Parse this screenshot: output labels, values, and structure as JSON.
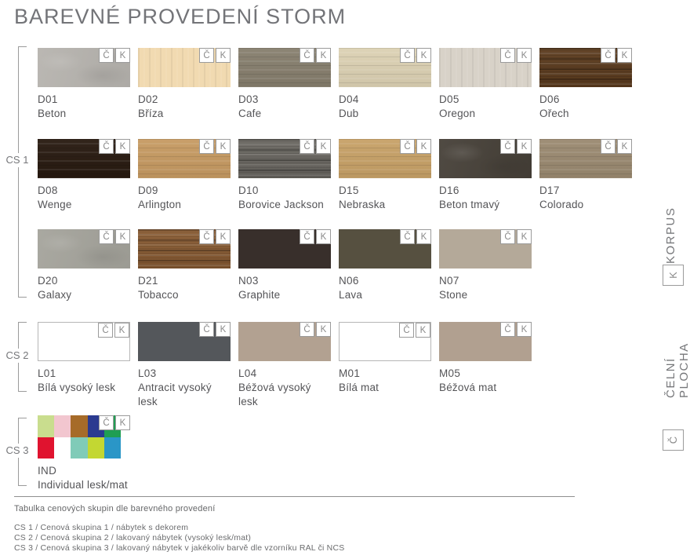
{
  "title": "BAREVNÉ PROVEDENÍ STORM",
  "badges": {
    "front": "Č",
    "korpus": "K"
  },
  "groups": [
    {
      "label": "CS 1"
    },
    {
      "label": "CS 2"
    },
    {
      "label": "CS 3"
    }
  ],
  "rows": [
    {
      "items": [
        {
          "code": "D01",
          "name": "Beton",
          "color": "#b6b3ae",
          "texture": "concrete"
        },
        {
          "code": "D02",
          "name": "Bříza",
          "color": "#f1dab1",
          "texture": "wood-v"
        },
        {
          "code": "D03",
          "name": "Cafe",
          "color": "#867e6d",
          "texture": "wood-h"
        },
        {
          "code": "D04",
          "name": "Dub",
          "color": "#dcd1b3",
          "texture": "wood-h"
        },
        {
          "code": "D05",
          "name": "Oregon",
          "color": "#d8d2c8",
          "texture": "wood-v"
        },
        {
          "code": "D06",
          "name": "Ořech",
          "color": "#5d3c1e",
          "texture": "wood-h-strong"
        }
      ]
    },
    {
      "items": [
        {
          "code": "D08",
          "name": "Wenge",
          "color": "#27190f",
          "texture": "wood-h"
        },
        {
          "code": "D09",
          "name": "Arlington",
          "color": "#c69a62",
          "texture": "wood-h"
        },
        {
          "code": "D10",
          "name": "Borovice Jackson",
          "color": "#6b6862",
          "texture": "wood-h-strong"
        },
        {
          "code": "D15",
          "name": "Nebraska",
          "color": "#c7a167",
          "texture": "wood-h"
        },
        {
          "code": "D16",
          "name": "Beton tmavý",
          "color": "#453f37",
          "texture": "concrete"
        },
        {
          "code": "D17",
          "name": "Colorado",
          "color": "#9a8970",
          "texture": "wood-h"
        }
      ]
    },
    {
      "items": [
        {
          "code": "D20",
          "name": "Galaxy",
          "color": "#a4a39b",
          "texture": "concrete"
        },
        {
          "code": "D21",
          "name": "Tobacco",
          "color": "#8a5c33",
          "texture": "wood-h-strong"
        },
        {
          "code": "N03",
          "name": "Graphite",
          "color": "#382f2b",
          "texture": "plain"
        },
        {
          "code": "N06",
          "name": "Lava",
          "color": "#565040",
          "texture": "plain"
        },
        {
          "code": "N07",
          "name": "Stone",
          "color": "#b4a999",
          "texture": "plain"
        }
      ]
    },
    {
      "items": [
        {
          "code": "L01",
          "name": "Bílá vysoký lesk",
          "color": "#ffffff",
          "texture": "plain",
          "border": true
        },
        {
          "code": "L03",
          "name": "Antracit vysoký lesk",
          "color": "#54575b",
          "texture": "plain"
        },
        {
          "code": "L04",
          "name": "Béžová vysoký lesk",
          "color": "#b2a191",
          "texture": "plain"
        },
        {
          "code": "M01",
          "name": "Bílá mat",
          "color": "#ffffff",
          "texture": "plain",
          "border": true
        },
        {
          "code": "M05",
          "name": "Béžová mat",
          "color": "#b1a090",
          "texture": "plain"
        }
      ]
    },
    {
      "items": [
        {
          "code": "IND",
          "name": "Individual lesk/mat",
          "grid": {
            "top": [
              "#c9dd8e",
              "#f2c6cf",
              "#a66b29",
              "#2b3a90",
              "#1f9e52"
            ],
            "bottom": [
              "#e0132f",
              "#ffffff",
              "#80cbb8",
              "#c3d732",
              "#2a96c7"
            ]
          }
        }
      ]
    }
  ],
  "legend_right": {
    "korpus_label": "KORPUS",
    "korpus_badge": "K",
    "front_label": "ČELNÍ PLOCHA",
    "front_badge": "Č"
  },
  "footer": {
    "heading": "Tabulka cenových skupin dle barevného provedení",
    "lines": [
      "CS 1 / Cenová skupina 1 / nábytek s dekorem",
      "CS 2 / Cenová skupina 2 / lakovaný nábytek (vysoký lesk/mat)",
      "CS 3 / Cenová skupina 3 / lakovaný nábytek v jakékoliv barvě dle vzorníku RAL či NCS"
    ]
  }
}
